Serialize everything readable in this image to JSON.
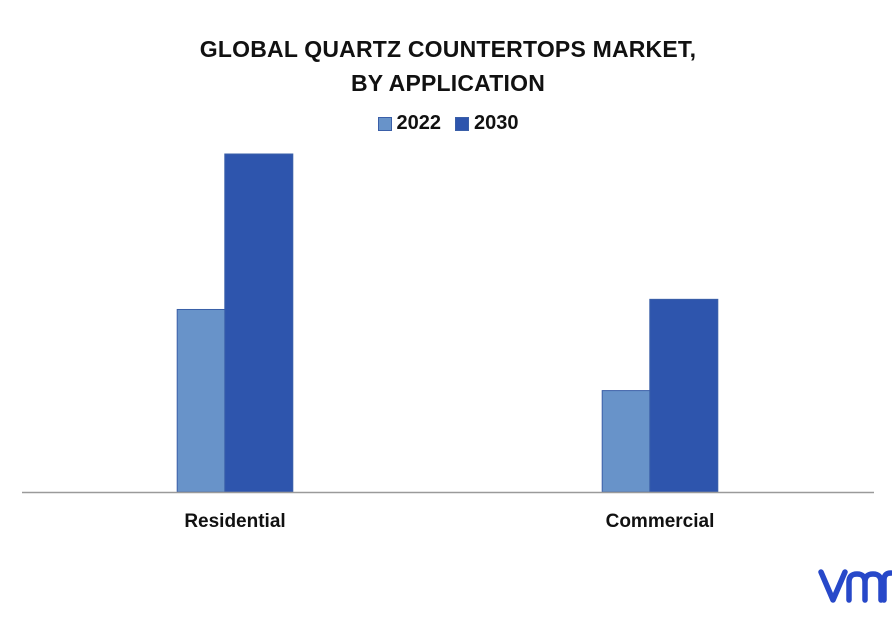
{
  "chart_data": {
    "type": "bar",
    "title_line1": "GLOBAL QUARTZ COUNTERTOPS MARKET,",
    "title_line2": "BY APPLICATION",
    "categories": [
      "Residential",
      "Commercial"
    ],
    "series": [
      {
        "name": "2022",
        "values": [
          54,
          30
        ],
        "color": "#6893c9"
      },
      {
        "name": "2030",
        "values": [
          100,
          57
        ],
        "color": "#2e55ad"
      }
    ],
    "ylim": [
      0,
      100
    ],
    "grid": false,
    "legend_position": "top-center",
    "xlabel": "",
    "ylabel": ""
  },
  "logo": {
    "icon": "vmr-logo-icon",
    "color": "#2748c9"
  }
}
